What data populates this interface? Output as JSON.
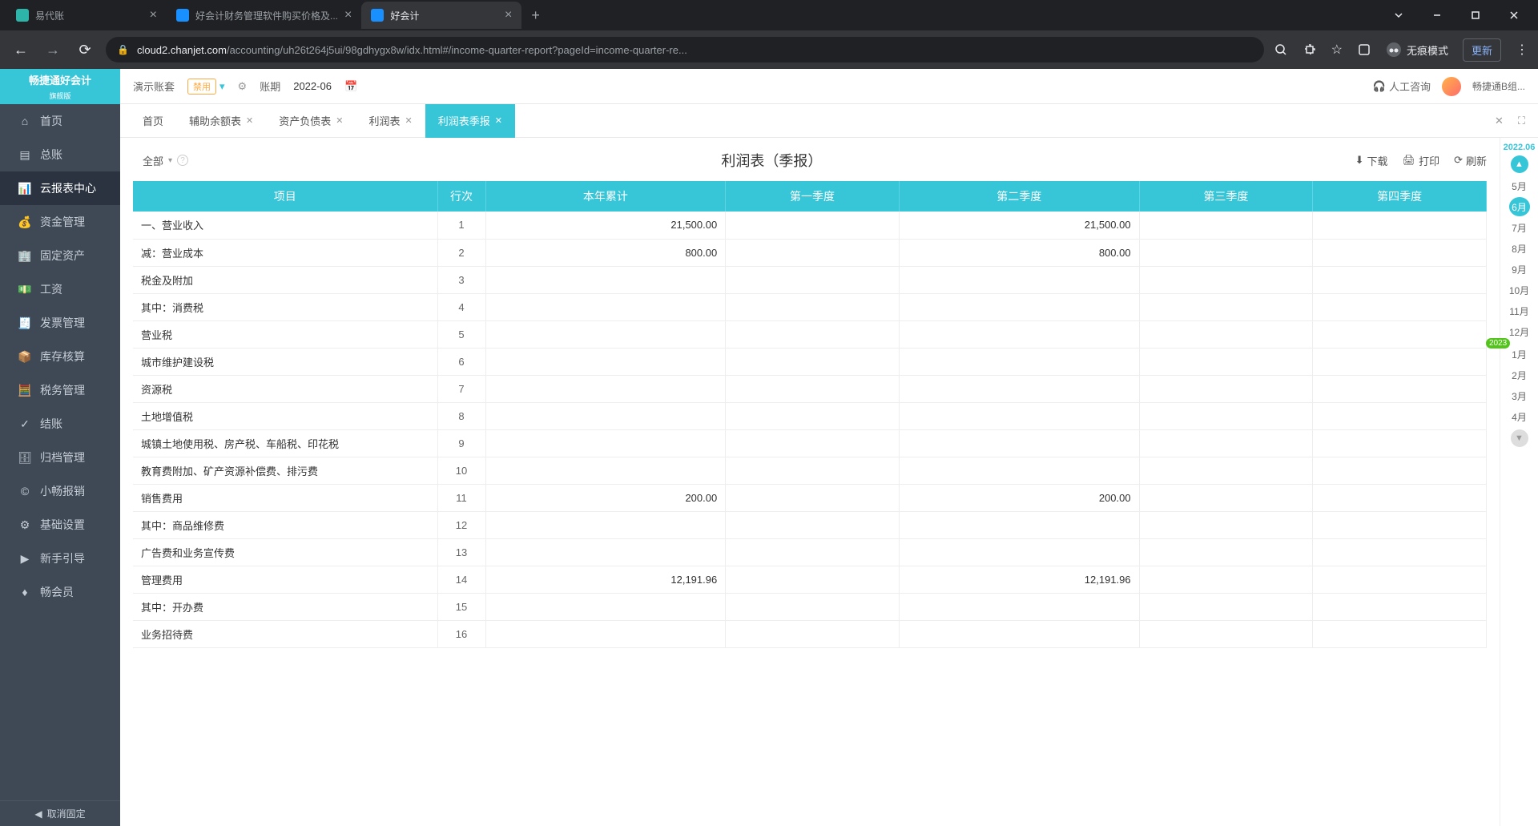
{
  "browser": {
    "tabs": [
      {
        "title": "易代账",
        "favicon_color": "#2db5a9"
      },
      {
        "title": "好会计财务管理软件购买价格及...",
        "favicon_color": "#1890ff"
      },
      {
        "title": "好会计",
        "favicon_color": "#1890ff",
        "active": true
      }
    ],
    "url_domain": "cloud2.chanjet.com",
    "url_path": "/accounting/uh26t264j5ui/98gdhygx8w/idx.html#/income-quarter-report?pageId=income-quarter-re...",
    "incognito_label": "无痕模式",
    "update_label": "更新"
  },
  "app": {
    "logo_main": "畅捷通好会计",
    "logo_sub": "旗舰版",
    "sidebar_items": [
      {
        "label": "首页",
        "icon": "home"
      },
      {
        "label": "总账",
        "icon": "ledger"
      },
      {
        "label": "云报表中心",
        "icon": "report",
        "active": true
      },
      {
        "label": "资金管理",
        "icon": "fund"
      },
      {
        "label": "固定资产",
        "icon": "asset"
      },
      {
        "label": "工资",
        "icon": "salary"
      },
      {
        "label": "发票管理",
        "icon": "invoice"
      },
      {
        "label": "库存核算",
        "icon": "inventory"
      },
      {
        "label": "税务管理",
        "icon": "tax"
      },
      {
        "label": "结账",
        "icon": "close"
      },
      {
        "label": "归档管理",
        "icon": "archive"
      },
      {
        "label": "小畅报销",
        "icon": "expense"
      },
      {
        "label": "基础设置",
        "icon": "settings"
      },
      {
        "label": "新手引导",
        "icon": "guide"
      },
      {
        "label": "畅会员",
        "icon": "member"
      }
    ],
    "pin_label": "取消固定"
  },
  "topbar": {
    "account": "演示账套",
    "forbid_tag": "禁用",
    "period_label": "账期",
    "period_value": "2022-06",
    "consult": "人工咨询",
    "user": "畅捷通B组..."
  },
  "page_tabs": [
    {
      "label": "首页",
      "closable": false
    },
    {
      "label": "辅助余额表",
      "closable": true
    },
    {
      "label": "资产负债表",
      "closable": true
    },
    {
      "label": "利润表",
      "closable": true
    },
    {
      "label": "利润表季报",
      "closable": true,
      "active": true
    }
  ],
  "report": {
    "filter_label": "全部",
    "title": "利润表（季报）",
    "actions": {
      "download": "下载",
      "print": "打印",
      "refresh": "刷新"
    },
    "columns": [
      "项目",
      "行次",
      "本年累计",
      "第一季度",
      "第二季度",
      "第三季度",
      "第四季度"
    ],
    "rows": [
      {
        "item": "一、营业收入",
        "line": "1",
        "total": "21,500.00",
        "q1": "",
        "q2": "21,500.00",
        "q3": "",
        "q4": ""
      },
      {
        "item": "减：营业成本",
        "line": "2",
        "total": "800.00",
        "q1": "",
        "q2": "800.00",
        "q3": "",
        "q4": ""
      },
      {
        "item": "税金及附加",
        "line": "3",
        "total": "",
        "q1": "",
        "q2": "",
        "q3": "",
        "q4": ""
      },
      {
        "item": "其中：消费税",
        "line": "4",
        "total": "",
        "q1": "",
        "q2": "",
        "q3": "",
        "q4": ""
      },
      {
        "item": "营业税",
        "line": "5",
        "total": "",
        "q1": "",
        "q2": "",
        "q3": "",
        "q4": ""
      },
      {
        "item": "城市维护建设税",
        "line": "6",
        "total": "",
        "q1": "",
        "q2": "",
        "q3": "",
        "q4": ""
      },
      {
        "item": "资源税",
        "line": "7",
        "total": "",
        "q1": "",
        "q2": "",
        "q3": "",
        "q4": ""
      },
      {
        "item": "土地增值税",
        "line": "8",
        "total": "",
        "q1": "",
        "q2": "",
        "q3": "",
        "q4": ""
      },
      {
        "item": "城镇土地使用税、房产税、车船税、印花税",
        "line": "9",
        "total": "",
        "q1": "",
        "q2": "",
        "q3": "",
        "q4": ""
      },
      {
        "item": "教育费附加、矿产资源补偿费、排污费",
        "line": "10",
        "total": "",
        "q1": "",
        "q2": "",
        "q3": "",
        "q4": ""
      },
      {
        "item": "销售费用",
        "line": "11",
        "total": "200.00",
        "q1": "",
        "q2": "200.00",
        "q3": "",
        "q4": ""
      },
      {
        "item": "其中：商品维修费",
        "line": "12",
        "total": "",
        "q1": "",
        "q2": "",
        "q3": "",
        "q4": ""
      },
      {
        "item": "广告费和业务宣传费",
        "line": "13",
        "total": "",
        "q1": "",
        "q2": "",
        "q3": "",
        "q4": ""
      },
      {
        "item": "管理费用",
        "line": "14",
        "total": "12,191.96",
        "q1": "",
        "q2": "12,191.96",
        "q3": "",
        "q4": ""
      },
      {
        "item": "其中：开办费",
        "line": "15",
        "total": "",
        "q1": "",
        "q2": "",
        "q3": "",
        "q4": ""
      },
      {
        "item": "业务招待费",
        "line": "16",
        "total": "",
        "q1": "",
        "q2": "",
        "q3": "",
        "q4": ""
      }
    ]
  },
  "month_nav": {
    "year_label": "2022.06",
    "months_top": [
      "5月",
      "6月",
      "7月",
      "8月",
      "9月",
      "10月",
      "11月",
      "12月"
    ],
    "current": "6月",
    "year_badge": "2023",
    "months_bottom": [
      "1月",
      "2月",
      "3月",
      "4月"
    ]
  }
}
